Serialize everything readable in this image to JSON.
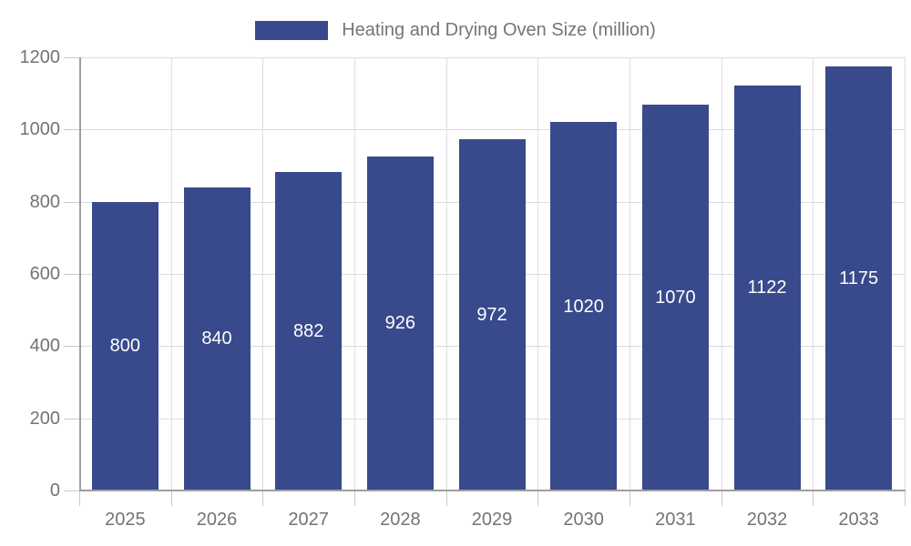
{
  "legend": {
    "label": "Heating and Drying Oven Size (million)"
  },
  "chart_data": {
    "type": "bar",
    "title": "Heating and Drying Oven Size (million)",
    "categories": [
      "2025",
      "2026",
      "2027",
      "2028",
      "2029",
      "2030",
      "2031",
      "2032",
      "2033"
    ],
    "values": [
      800,
      840,
      882,
      926,
      972,
      1020,
      1070,
      1122,
      1175
    ],
    "data_labels_shown": [
      "800",
      "840",
      "882",
      "926",
      "972",
      "1020",
      "1070",
      "1122",
      "1175"
    ],
    "xlabel": "",
    "ylabel": "",
    "ylim": [
      0,
      1200
    ],
    "y_ticks": [
      0,
      200,
      400,
      600,
      800,
      1000,
      1200
    ],
    "grid": true,
    "legend_position": "top-center",
    "colors": {
      "bar": "#394A8C",
      "bar_label": "#FFFFFF",
      "grid": "#DCDCDC",
      "axis": "#9E9E9E",
      "tick": "#C9C9C9",
      "tick_text": "#737373",
      "legend_text": "#757575"
    }
  }
}
